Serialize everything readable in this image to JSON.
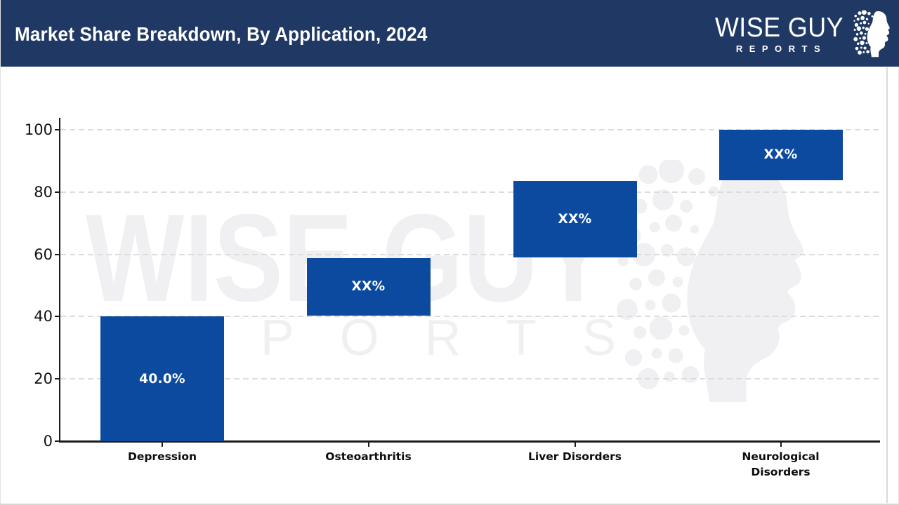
{
  "header": {
    "title": "Market Share Breakdown, By Application, 2024",
    "logo": {
      "name_line": "WISE GUY",
      "sub_line": "REPORTS"
    }
  },
  "watermark": {
    "line1": "WISE GUY",
    "line2": "REPORTS"
  },
  "colors": {
    "header_bg": "#1f3864",
    "bar": "#0c4a9f",
    "grid": "#dcdcdc",
    "axis": "#1a1a1a",
    "bar_label": "#ffffff",
    "watermark": "#f0f0f3"
  },
  "chart_data": {
    "type": "bar",
    "subtype": "waterfall",
    "title": "Market Share Breakdown, By Application, 2024",
    "xlabel": "",
    "ylabel": "",
    "ylim": [
      0,
      100
    ],
    "yticks": [
      0,
      20,
      40,
      60,
      80,
      100
    ],
    "grid": "horizontal-dashed",
    "legend": "none",
    "categories": [
      "Depression",
      "Osteoarthritis",
      "Liver Disorders",
      "Neurological\nDisorders"
    ],
    "values": [
      40.0,
      18.3,
      24.5,
      16.2
    ],
    "series": [
      {
        "name": "Market Share",
        "segments": [
          {
            "category": "Depression",
            "base": 0.0,
            "top": 40.0,
            "label": "40.0%"
          },
          {
            "category": "Osteoarthritis",
            "base": 40.4,
            "top": 58.7,
            "label": "XX%"
          },
          {
            "category": "Liver Disorders",
            "base": 59.0,
            "top": 83.5,
            "label": "XX%"
          },
          {
            "category": "Neurological Disorders",
            "base": 83.8,
            "top": 100.0,
            "label": "XX%"
          }
        ]
      }
    ]
  }
}
